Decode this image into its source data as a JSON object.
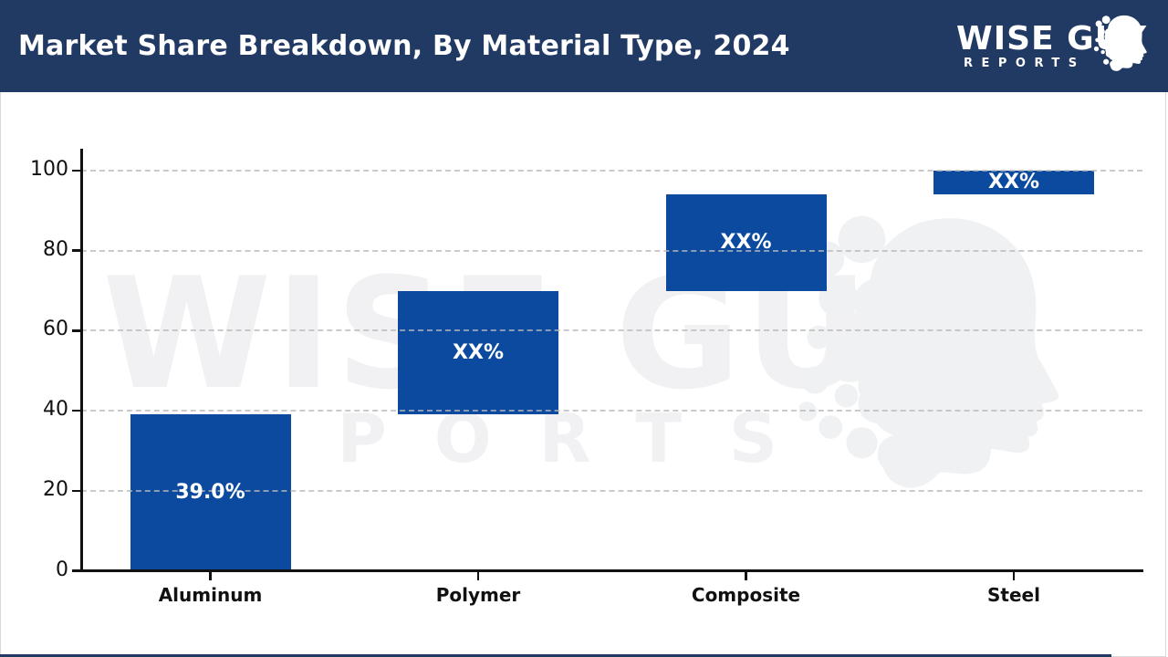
{
  "header": {
    "title": "Market Share Breakdown, By Material Type, 2024",
    "logo": {
      "line1": "WISE GUY",
      "line2": "REPORTS"
    }
  },
  "watermark": {
    "line1": "WISE GUY",
    "line2": "REPORTS"
  },
  "footer": {
    "strip_color": "#213a64"
  },
  "colors": {
    "header_bg": "#213a64",
    "bar_blue": "#0b4a9f",
    "watermark_gray": "#f1f1f4",
    "axis_black": "#111111"
  },
  "chart_data": {
    "type": "bar",
    "subtype": "waterfall",
    "title": "Market Share Breakdown, By Material Type, 2024",
    "categories": [
      "Aluminum",
      "Polymer",
      "Composite",
      "Steel"
    ],
    "segments": [
      {
        "category": "Aluminum",
        "start": 0,
        "end": 39,
        "label": "39.0%"
      },
      {
        "category": "Polymer",
        "start": 39,
        "end": 70,
        "label": "XX%"
      },
      {
        "category": "Composite",
        "start": 70,
        "end": 94,
        "label": "XX%"
      },
      {
        "category": "Steel",
        "start": 94,
        "end": 100,
        "label": "XX%"
      }
    ],
    "yticks": [
      0,
      20,
      40,
      60,
      80,
      100
    ],
    "ylim": [
      0,
      100
    ],
    "xlabel": "",
    "ylabel": "",
    "grid": "horizontal-dashed",
    "legend": "none",
    "bar_color": "#0b4a9f"
  }
}
